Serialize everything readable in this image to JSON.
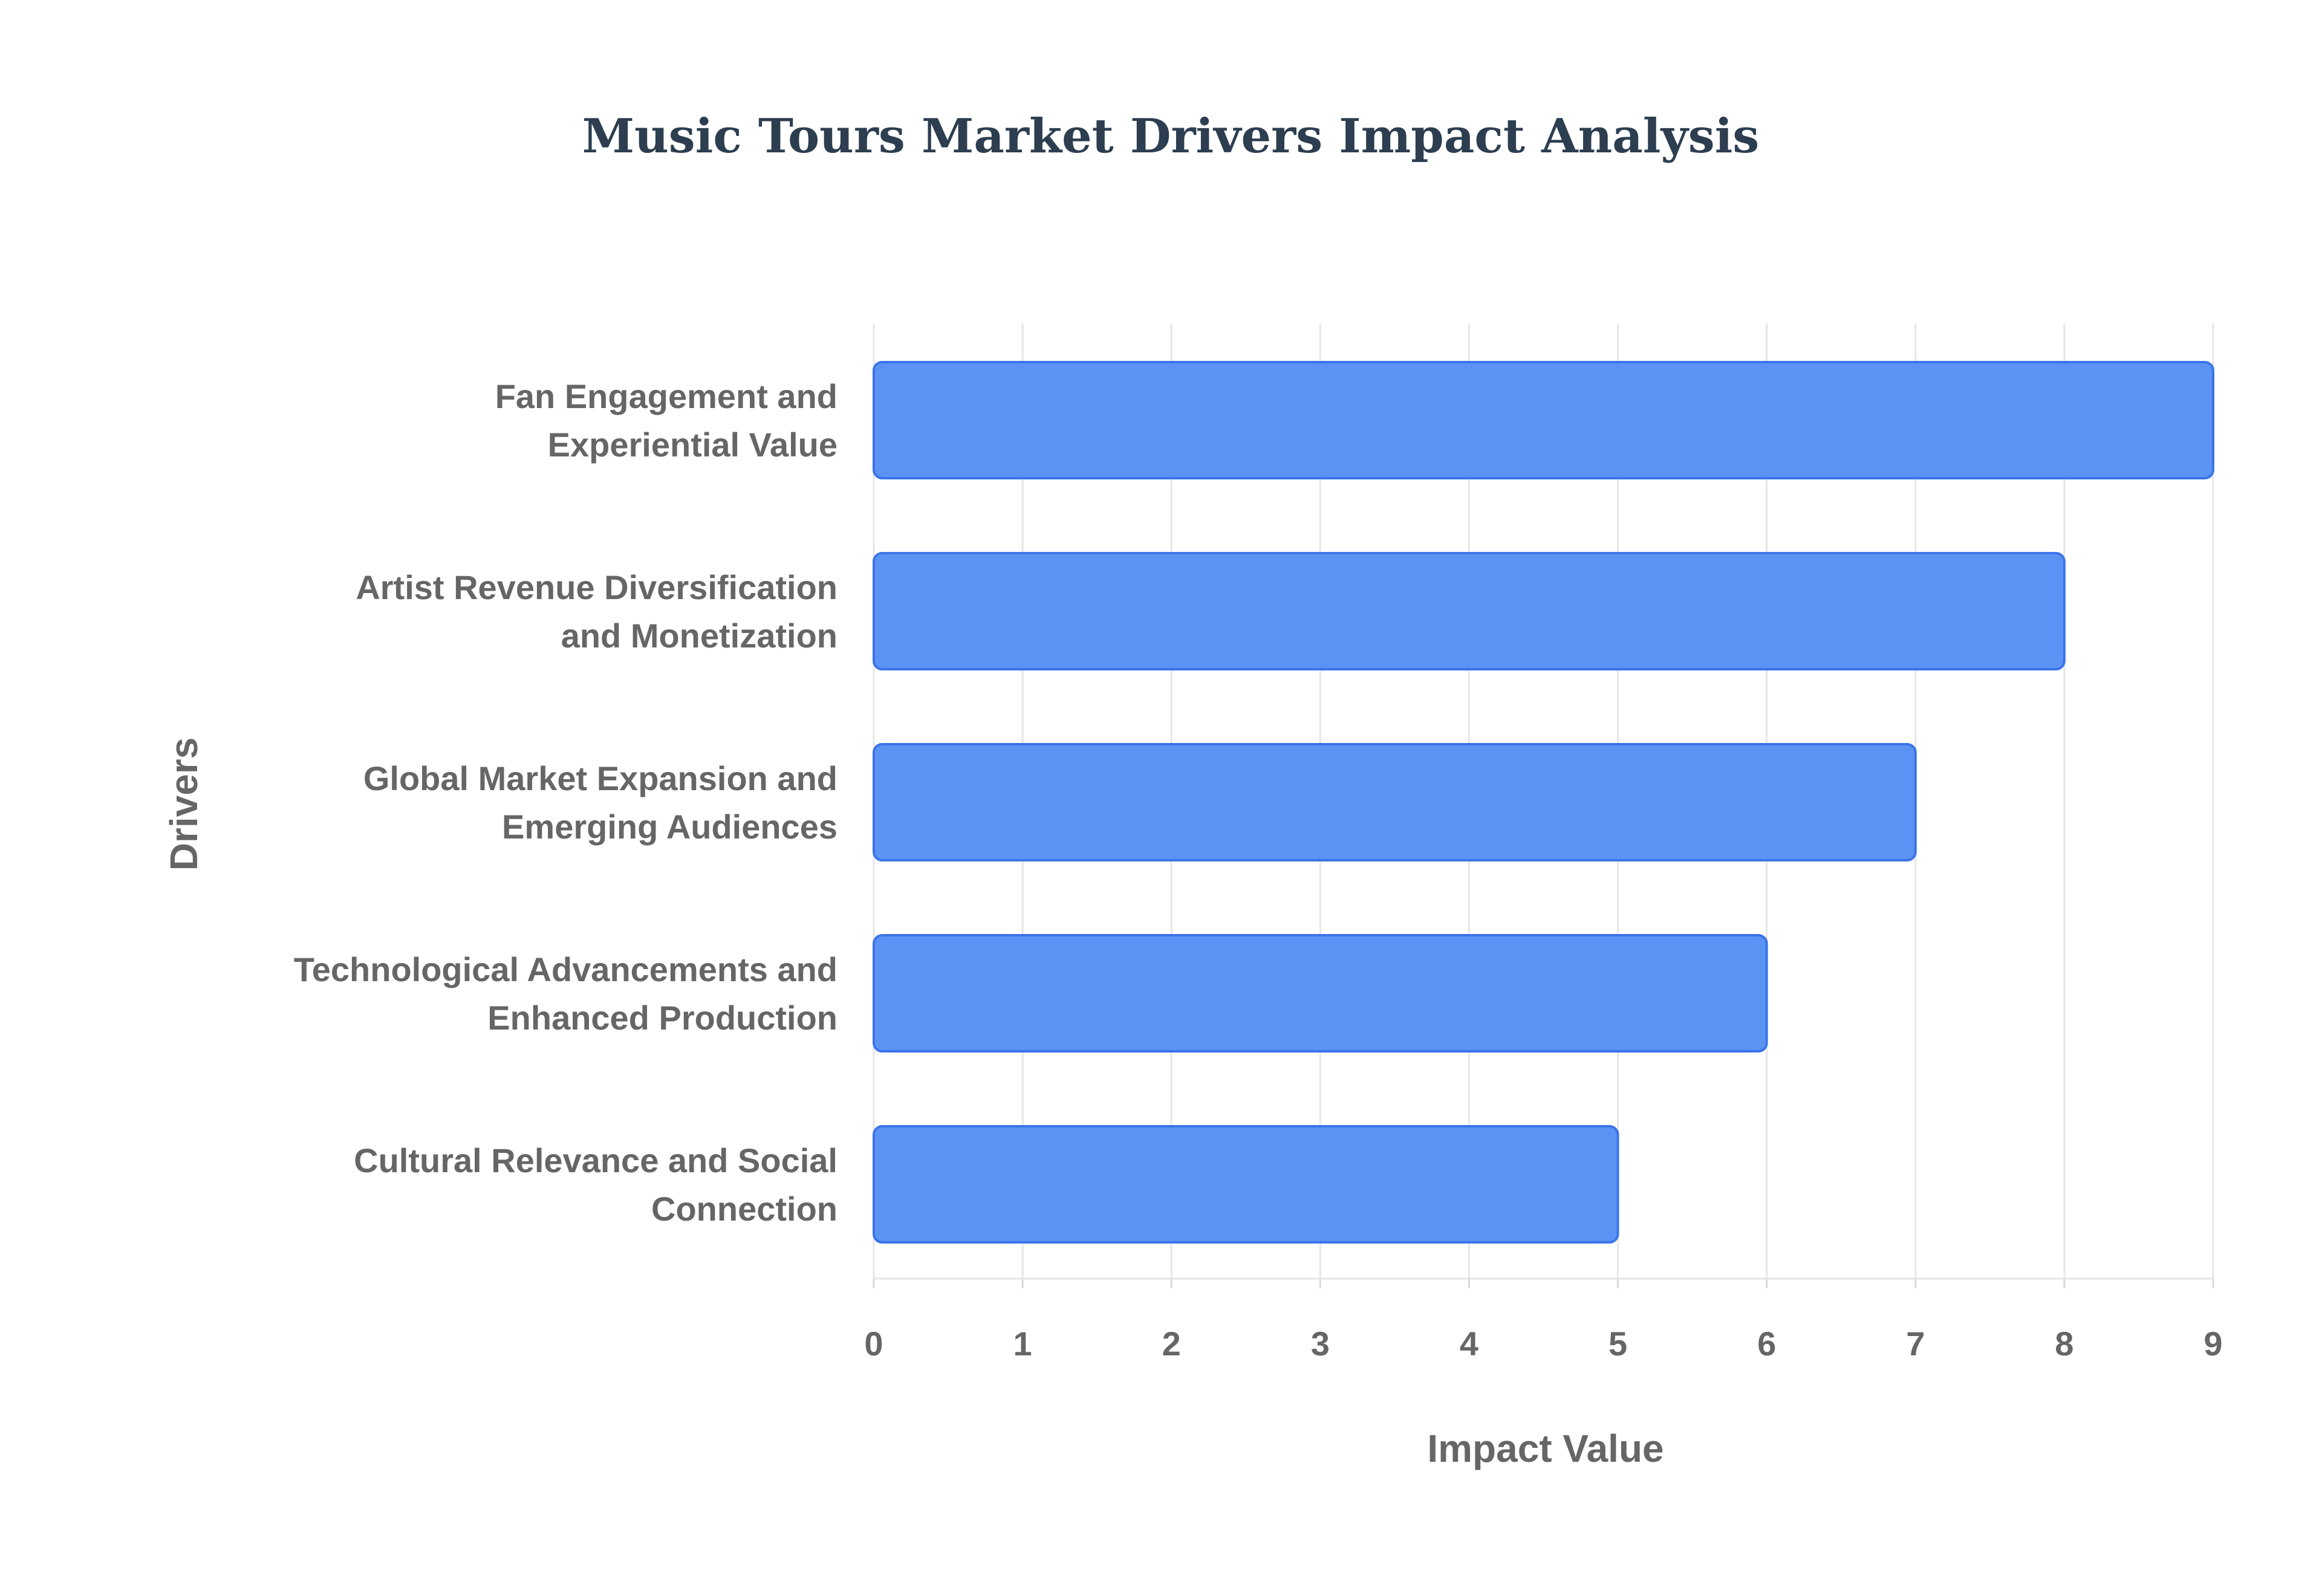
{
  "chart_data": {
    "type": "bar",
    "orientation": "horizontal",
    "title": "Music Tours Market Drivers Impact Analysis",
    "xlabel": "Impact Value",
    "ylabel": "Drivers",
    "categories": [
      [
        "Fan Engagement and",
        "Experiential Value"
      ],
      [
        "Artist Revenue Diversification",
        "and Monetization"
      ],
      [
        "Global Market Expansion and",
        "Emerging Audiences"
      ],
      [
        "Technological Advancements and",
        "Enhanced Production"
      ],
      [
        "Cultural Relevance and Social",
        "Connection"
      ]
    ],
    "values": [
      9,
      8,
      7,
      6,
      5
    ],
    "xlim": [
      0,
      9
    ],
    "xticks": [
      "0",
      "1",
      "2",
      "3",
      "4",
      "5",
      "6",
      "7",
      "8",
      "9"
    ],
    "grid": true,
    "legend": false,
    "bar_color": "#5b93f5",
    "bar_border_color": "#3b74e8"
  }
}
